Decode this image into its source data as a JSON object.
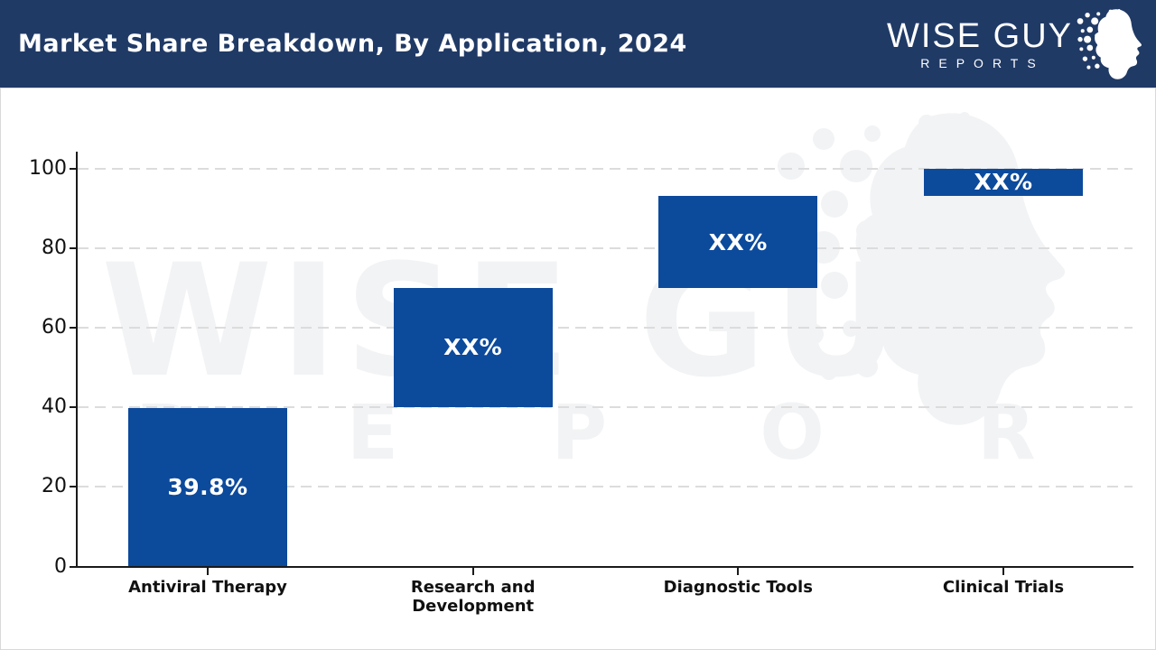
{
  "header": {
    "title": "Market Share Breakdown, By Application, 2024",
    "logo": {
      "line1": "WISE GUY",
      "line2": "REPORTS"
    }
  },
  "watermark": {
    "line1": "WISE GU",
    "line2": "R E P O R T S"
  },
  "colors": {
    "header_bg": "#203a66",
    "bar": "#0c4a9c",
    "bar_label": "#ffffff",
    "watermark": "#f2f3f5",
    "gridline": "#dcdcdc",
    "axis": "#1a1a1a",
    "card_border": "#d9d9d9"
  },
  "chart_data": {
    "type": "bar",
    "subtype": "floating-segment-breakdown",
    "title": "Market Share Breakdown, By Application, 2024",
    "categories": [
      "Antiviral Therapy",
      "Research and\nDevelopment",
      "Diagnostic Tools",
      "Clinical Trials"
    ],
    "segments": [
      {
        "category": "Antiviral Therapy",
        "start": 0,
        "end": 39.8,
        "value": 39.8,
        "label": "39.8%"
      },
      {
        "category": "Research and Development",
        "start": 40,
        "end": 70,
        "value": 30,
        "label": "XX%"
      },
      {
        "category": "Diagnostic Tools",
        "start": 70,
        "end": 93,
        "value": 23,
        "label": "XX%"
      },
      {
        "category": "Clinical Trials",
        "start": 93,
        "end": 100,
        "value": 7,
        "label": "XX%"
      }
    ],
    "xlabel": "",
    "ylabel": "",
    "ylim": [
      0,
      100
    ],
    "yticks": [
      0,
      20,
      40,
      60,
      80,
      100
    ],
    "grid": "horizontal-dashed",
    "legend": "none"
  }
}
